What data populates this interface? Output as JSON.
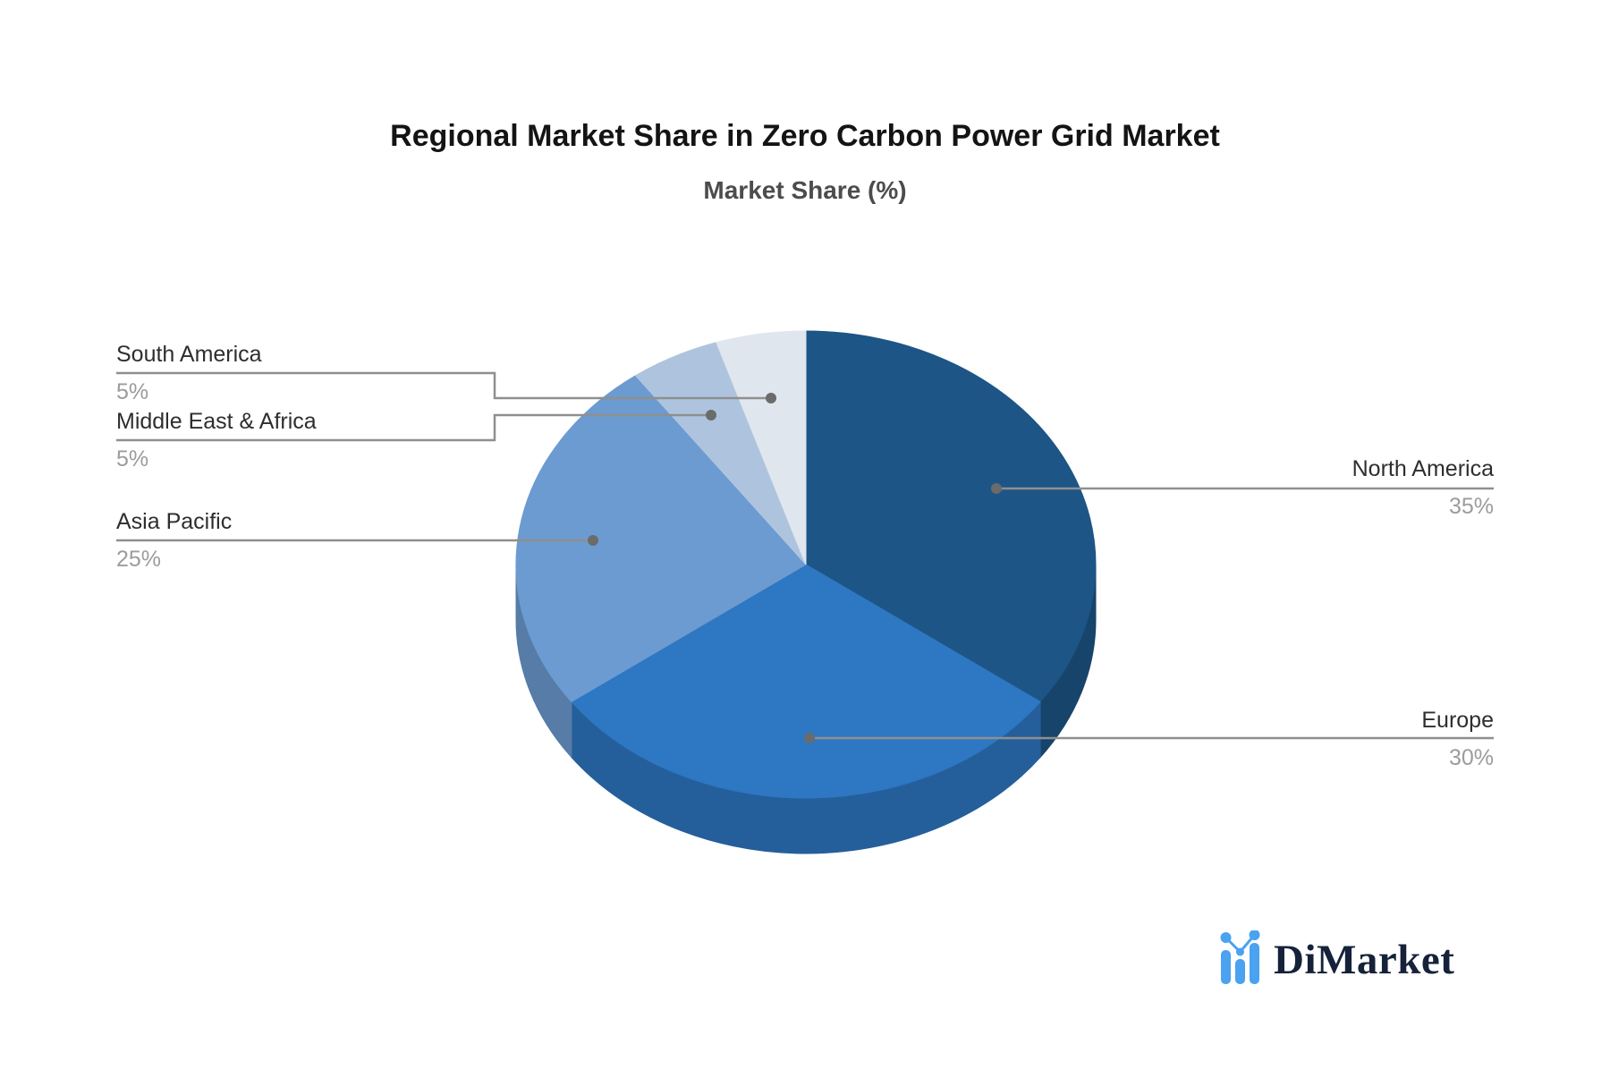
{
  "header": {
    "title": "Regional Market Share in Zero Carbon Power Grid Market",
    "subtitle": "Market Share (%)"
  },
  "chart_data": {
    "type": "pie",
    "style": "3d",
    "title": "Regional Market Share in Zero Carbon Power Grid Market",
    "subtitle": "Market Share (%)",
    "unit": "%",
    "total": 100,
    "start_angle": "12-o-clock",
    "direction": "clockwise",
    "legend_position": "callout-labels",
    "slices": [
      {
        "name": "North America",
        "value": 35,
        "label": "35%",
        "color": "#1d5586"
      },
      {
        "name": "Europe",
        "value": 30,
        "label": "30%",
        "color": "#2e77c2"
      },
      {
        "name": "Asia Pacific",
        "value": 25,
        "label": "25%",
        "color": "#6c9bd1"
      },
      {
        "name": "Middle East & Africa",
        "value": 5,
        "label": "5%",
        "color": "#aec4de"
      },
      {
        "name": "South America",
        "value": 5,
        "label": "5%",
        "color": "#e0e6ed"
      }
    ],
    "leader_line_color": "#8f8f8f",
    "leader_dot_color": "#6b6b6b"
  },
  "branding": {
    "name": "DiMarket",
    "icon": "bar-chart-logo-icon",
    "icon_color": "#4aa2f0",
    "text_color": "#15223a"
  }
}
